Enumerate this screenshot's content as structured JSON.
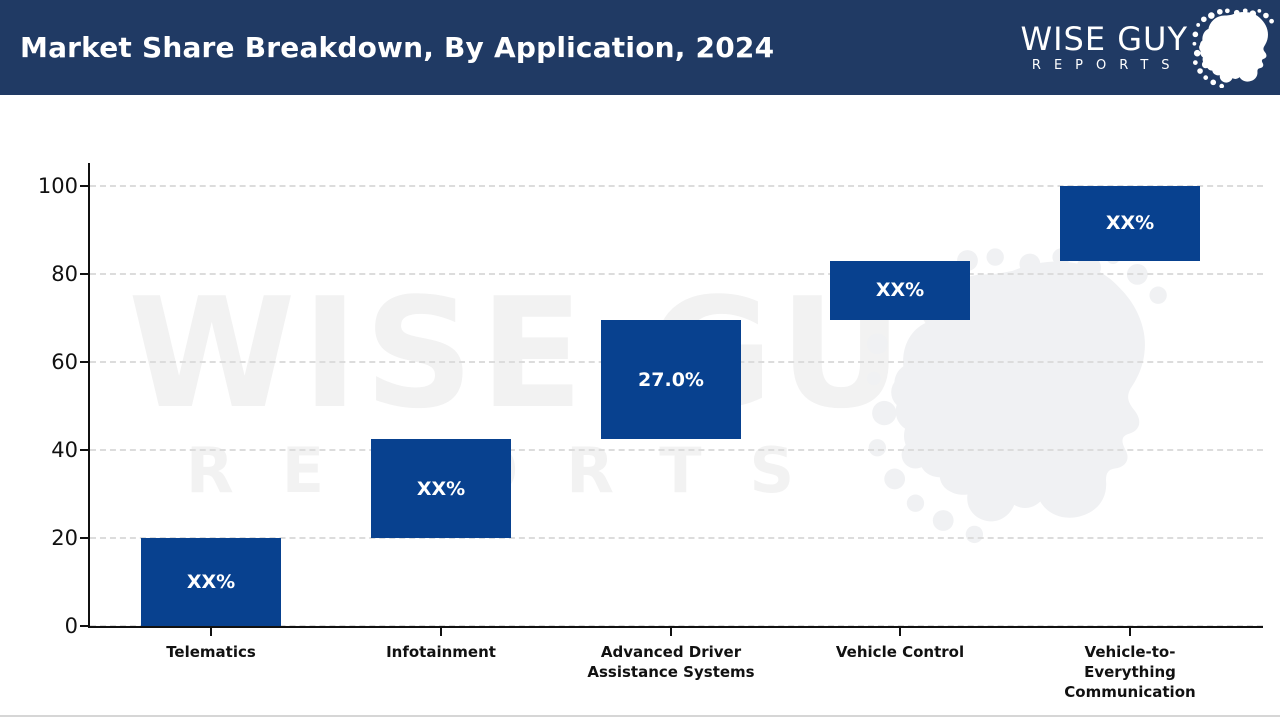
{
  "header": {
    "title": "Market Share Breakdown, By Application, 2024",
    "bg_color": "#203a64",
    "logo_line1": "WISE GUY",
    "logo_line2": "REPORTS"
  },
  "watermark": {
    "line1": "WISE GUY",
    "line2": "REPORTS"
  },
  "chart_data": {
    "type": "bar",
    "subtype": "waterfall",
    "title": "Market Share Breakdown, By Application, 2024",
    "xlabel": "",
    "ylabel": "",
    "ylim": [
      0,
      100
    ],
    "yticks": [
      0,
      20,
      40,
      60,
      80,
      100
    ],
    "grid": "horizontal-dashed",
    "legend": "none",
    "bar_color": "#08418f",
    "bar_label_color": "#ffffff",
    "axis_color": "#111111",
    "categories": [
      "Telematics",
      "Infotainment",
      "Advanced Driver Assistance Systems",
      "Vehicle Control",
      "Vehicle-to-Everything Communication"
    ],
    "category_label_lines": [
      [
        "Telematics"
      ],
      [
        "Infotainment"
      ],
      [
        "Advanced Driver",
        "Assistance Systems"
      ],
      [
        "Vehicle Control"
      ],
      [
        "Vehicle-to-",
        "Everything",
        "Communication"
      ]
    ],
    "bars": [
      {
        "category": "Telematics",
        "start": 0,
        "end": 20,
        "label": "XX%"
      },
      {
        "category": "Infotainment",
        "start": 20,
        "end": 42.5,
        "label": "XX%"
      },
      {
        "category": "Advanced Driver Assistance Systems",
        "start": 42.5,
        "end": 69.5,
        "label": "27.0%"
      },
      {
        "category": "Vehicle Control",
        "start": 69.5,
        "end": 83,
        "label": "XX%"
      },
      {
        "category": "Vehicle-to-Everything Communication",
        "start": 83,
        "end": 100,
        "label": "XX%"
      }
    ]
  }
}
